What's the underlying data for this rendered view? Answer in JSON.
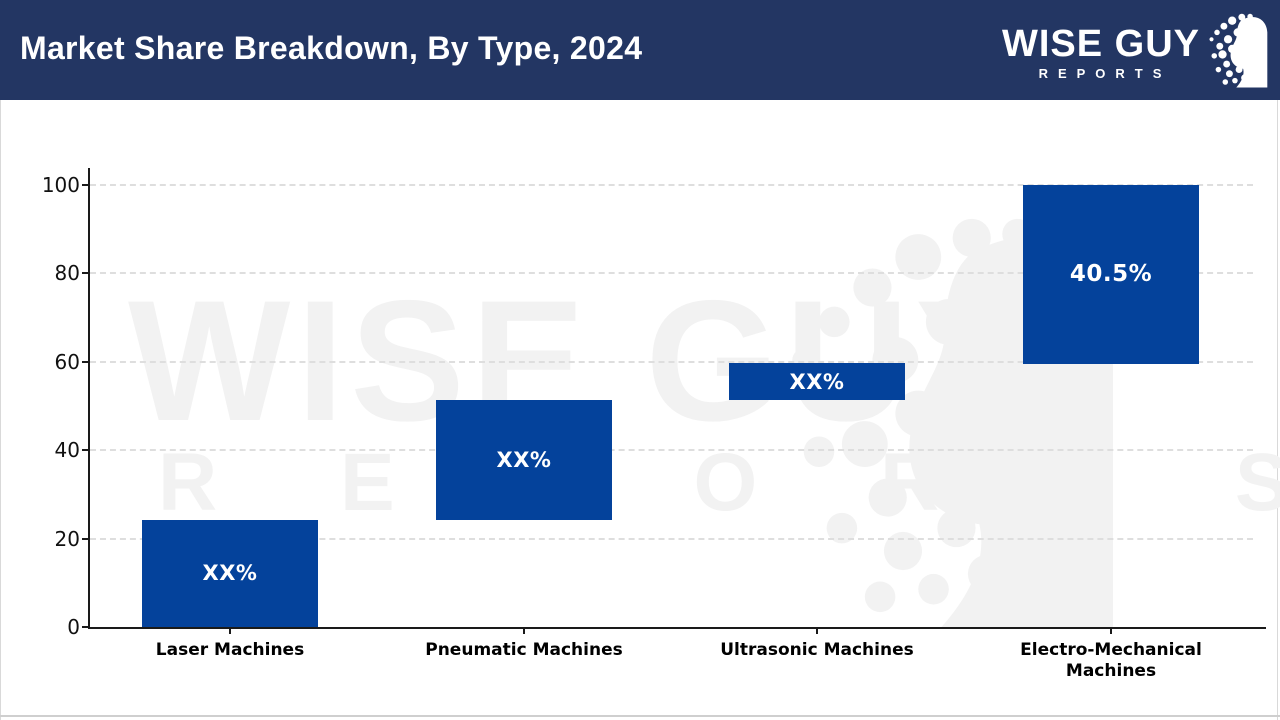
{
  "header": {
    "title": "Market Share Breakdown, By Type, 2024",
    "bg_color": "#233663",
    "logo": {
      "line1": "WISE GUY",
      "line2": "REPORTS"
    }
  },
  "watermark": {
    "line1": "WISE GUY",
    "line2": "R E P O R T S"
  },
  "chart_data": {
    "type": "bar",
    "subtype": "floating-stacked-range-bars",
    "title": "Market Share Breakdown, By Type, 2024",
    "categories": [
      "Laser Machines",
      "Pneumatic Machines",
      "Ultrasonic Machines",
      "Electro-Mechanical Machines"
    ],
    "segments": [
      {
        "category": "Laser Machines",
        "start": 0,
        "end": 24.2,
        "label": "XX%"
      },
      {
        "category": "Pneumatic Machines",
        "start": 24.2,
        "end": 51.3,
        "label": "XX%"
      },
      {
        "category": "Ultrasonic Machines",
        "start": 51.3,
        "end": 59.6,
        "label": "XX%"
      },
      {
        "category": "Electro-Mechanical Machines",
        "start": 59.5,
        "end": 100,
        "label": "40.5%"
      }
    ],
    "xlabel": "",
    "ylabel": "",
    "ylim": [
      0,
      100
    ],
    "yticks": [
      0,
      20,
      40,
      60,
      80,
      100
    ],
    "grid": "dashed-horizontal",
    "legend": "none",
    "bar_color": "#04429B",
    "bar_label_color": "#FFFFFF"
  }
}
